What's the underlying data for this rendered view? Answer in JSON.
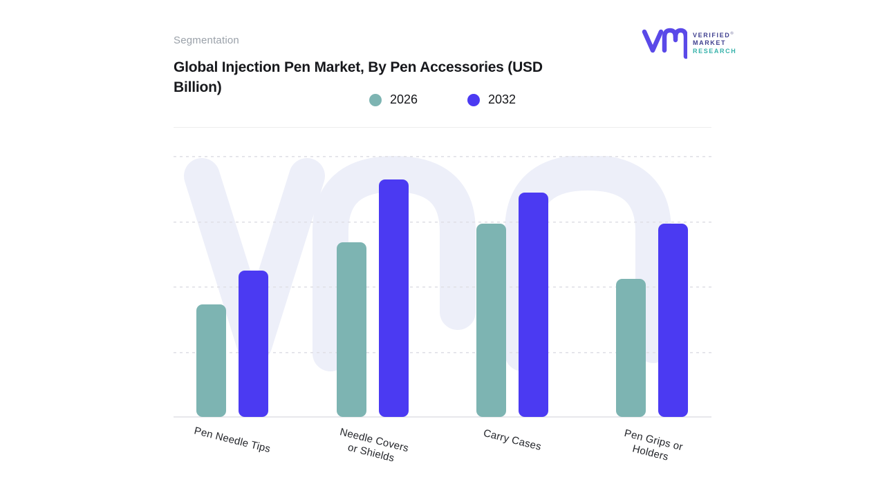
{
  "header": {
    "eyebrow": "Segmentation",
    "title_line1": "Global Injection Pen Market, By Pen Accessories (USD",
    "title_line2": "Billion)"
  },
  "brand": {
    "name_line1": "VERIFIED",
    "registered_mark": "®",
    "name_line2": "MARKET",
    "name_line3": "RESEARCH",
    "glyph_color": "#5a49e8",
    "text_color": "#3f3f8f",
    "accent_color": "#35b2aa"
  },
  "legend": {
    "items": [
      {
        "label": "2026",
        "color": "#7db4b2"
      },
      {
        "label": "2032",
        "color": "#4b3af2"
      }
    ]
  },
  "chart_data": {
    "type": "bar",
    "title": "Global Injection Pen Market, By Pen Accessories (USD Billion)",
    "categories": [
      "Pen Needle Tips",
      "Needle Covers or Shields",
      "Carry Cases",
      "Pen Grips or Holders"
    ],
    "category_label_lines": [
      [
        "Pen Needle Tips"
      ],
      [
        "Needle Covers",
        "or Shields"
      ],
      [
        "Carry Cases"
      ],
      [
        "Pen Grips or",
        "Holders"
      ]
    ],
    "series": [
      {
        "name": "2026",
        "color": "#7db4b2",
        "values": [
          43,
          67,
          74,
          53
        ]
      },
      {
        "name": "2032",
        "color": "#4b3af2",
        "values": [
          56,
          91,
          86,
          74
        ]
      }
    ],
    "xlabel": "",
    "ylabel": "",
    "value_axis": {
      "min": 0,
      "max": 100,
      "gridlines": [
        25,
        50,
        75,
        100
      ],
      "labels_visible": false,
      "note": "Y-axis has no visible tick labels; values estimated as percent of plot height from gridlines"
    },
    "grid": "horizontal-dashed",
    "legend_position": "top-center",
    "watermark": "vm brand watermark behind plot",
    "colors": {
      "gridline": "#e0e0e6",
      "baseline": "#e7e7eb",
      "watermark": "#edeff9"
    }
  }
}
